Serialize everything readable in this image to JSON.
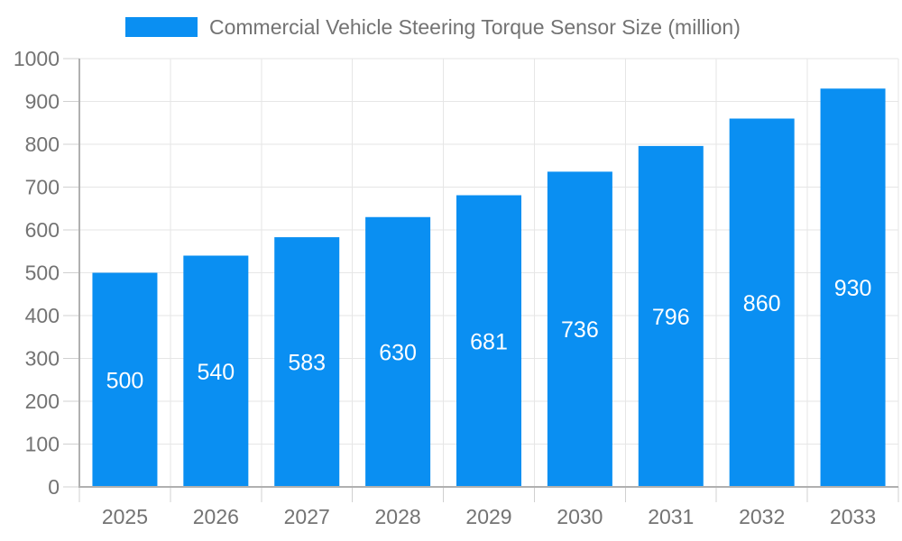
{
  "legend": {
    "label": "Commercial Vehicle Steering Torque Sensor Size (million)"
  },
  "colors": {
    "bar": "#0a8ff2",
    "grid": "#e6e6e6",
    "tick": "#d0d0d0",
    "axis": "#b0b0b0",
    "axis_text": "#737373",
    "value_text": "#ffffff",
    "background": "#ffffff"
  },
  "chart_data": {
    "type": "bar",
    "title": "Commercial Vehicle Steering Torque Sensor Size (million)",
    "categories": [
      "2025",
      "2026",
      "2027",
      "2028",
      "2029",
      "2030",
      "2031",
      "2032",
      "2033"
    ],
    "values": [
      500,
      540,
      583,
      630,
      681,
      736,
      796,
      860,
      930
    ],
    "series": [
      {
        "name": "Commercial Vehicle Steering Torque Sensor Size (million)",
        "values": [
          500,
          540,
          583,
          630,
          681,
          736,
          796,
          860,
          930
        ]
      }
    ],
    "xlabel": "",
    "ylabel": "",
    "ylim": [
      0,
      1000
    ],
    "y_tick_step": 100,
    "y_tick_labels": [
      "0",
      "100",
      "200",
      "300",
      "400",
      "500",
      "600",
      "700",
      "800",
      "900",
      "1000"
    ],
    "grid": true,
    "legend_position": "top",
    "value_label_position": "inside-center"
  }
}
